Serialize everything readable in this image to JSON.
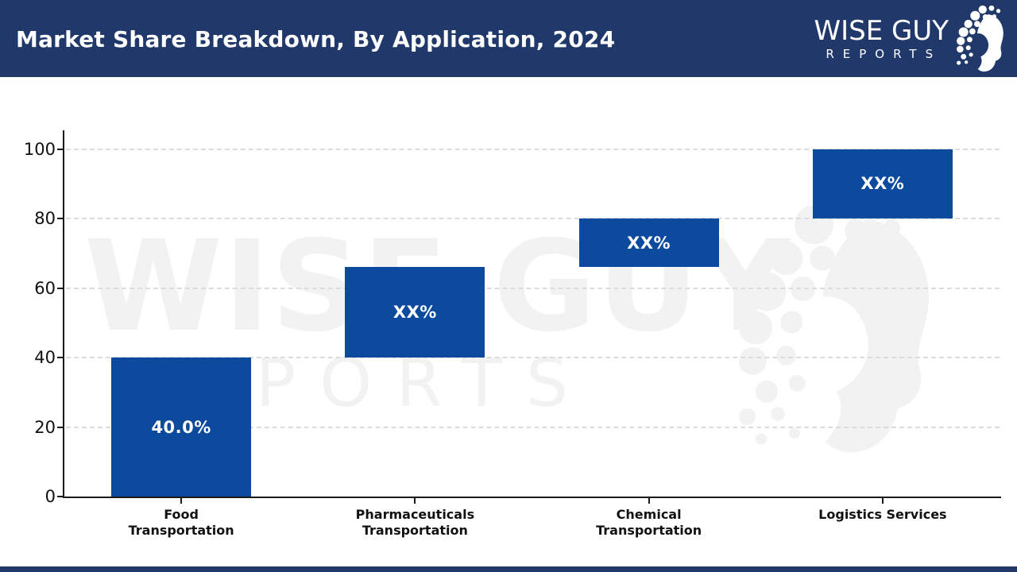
{
  "header": {
    "title": "Market Share Breakdown, By Application, 2024",
    "logo": {
      "line1": "WISE GUY",
      "line2": "REPORTS"
    }
  },
  "watermark": {
    "line1": "WISE GUY",
    "line2": "REPORTS"
  },
  "colors": {
    "header_bg": "#20386a",
    "bar": "#0c4a9e",
    "gridline": "#dcdcdc",
    "watermark": "#f2f2f2",
    "bar_label": "#ffffff"
  },
  "chart_data": {
    "type": "bar",
    "variant": "waterfall",
    "title": "Market Share Breakdown, By Application, 2024",
    "categories": [
      "Food Transportation",
      "Pharmaceuticals Transportation",
      "Chemical Transportation",
      "Logistics Services"
    ],
    "category_label_lines": [
      [
        "Food",
        "Transportation"
      ],
      [
        "Pharmaceuticals",
        "Transportation"
      ],
      [
        "Chemical",
        "Transportation"
      ],
      [
        "Logistics Services"
      ]
    ],
    "bars": [
      {
        "start": 0,
        "end": 40,
        "value": 40,
        "label": "40.0%"
      },
      {
        "start": 40,
        "end": 66,
        "value": 26,
        "label": "XX%"
      },
      {
        "start": 66,
        "end": 80,
        "value": 14,
        "label": "XX%"
      },
      {
        "start": 80,
        "end": 100,
        "value": 20,
        "label": "XX%"
      }
    ],
    "yticks": [
      0,
      20,
      40,
      60,
      80,
      100
    ],
    "ytick_labels": [
      "0",
      "20",
      "40",
      "60",
      "80",
      "100"
    ],
    "ylim": [
      0,
      105
    ],
    "xlabel": "",
    "ylabel": "",
    "grid": "horizontal-dashed",
    "legend": "none"
  }
}
